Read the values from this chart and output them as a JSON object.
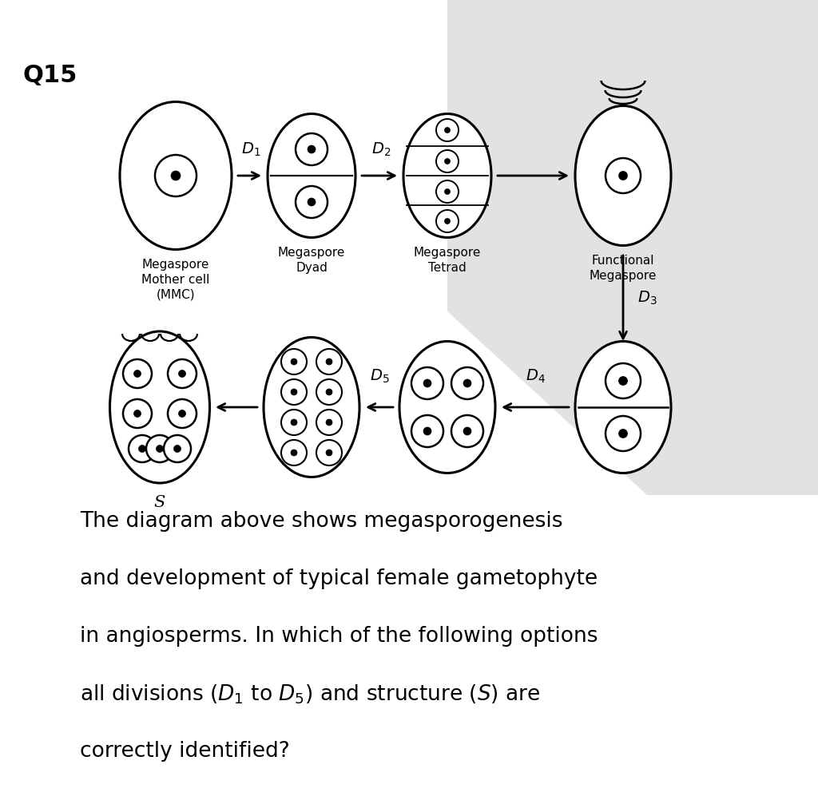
{
  "title": "Q15",
  "background_color": "#ffffff",
  "gray_bg_color": "#cccccc",
  "figsize": [
    10.24,
    10.07
  ],
  "dpi": 100,
  "labels_row1": [
    "Megaspore\nMother cell\n(MMC)",
    "Megaspore\nDyad",
    "Megaspore\nTetrad",
    "Functional\nMegaspore"
  ],
  "question_lines": [
    "The diagram above shows megasporogenesis",
    "and development of typical female gametophyte",
    "in angiosperms. In which of the following options",
    "all divisions ($D_1$ to $D_5$) and structure ($S$) are",
    "correctly identified?"
  ]
}
